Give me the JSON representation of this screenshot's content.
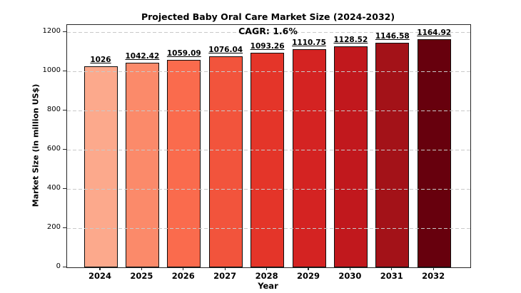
{
  "chart_data": {
    "type": "bar",
    "title": "Projected Baby Oral Care Market Size (2024-2032)",
    "annotation": "CAGR: 1.6%",
    "xlabel": "Year",
    "ylabel": "Market Size (in million US$)",
    "categories": [
      "2024",
      "2025",
      "2026",
      "2027",
      "2028",
      "2029",
      "2030",
      "2031",
      "2032"
    ],
    "values": [
      1026,
      1042.42,
      1059.09,
      1076.04,
      1093.26,
      1110.75,
      1128.52,
      1146.58,
      1164.92
    ],
    "bar_labels": [
      "1026",
      "1042.42",
      "1059.09",
      "1076.04",
      "1093.26",
      "1110.75",
      "1128.52",
      "1146.58",
      "1164.92"
    ],
    "bar_colors": [
      "#fca98c",
      "#fb8a6a",
      "#fa6b4d",
      "#f2543c",
      "#e43529",
      "#d42322",
      "#c1181d",
      "#a31218",
      "#67000d"
    ],
    "bar_edge_color": "#0d0d0d",
    "yticks": [
      0,
      200,
      400,
      600,
      800,
      1000,
      1200
    ],
    "ylim": [
      0,
      1236
    ],
    "grid": "horizontal dashed, drawn above bars",
    "gridline_color": "#c9c9c9",
    "legend": "none"
  }
}
